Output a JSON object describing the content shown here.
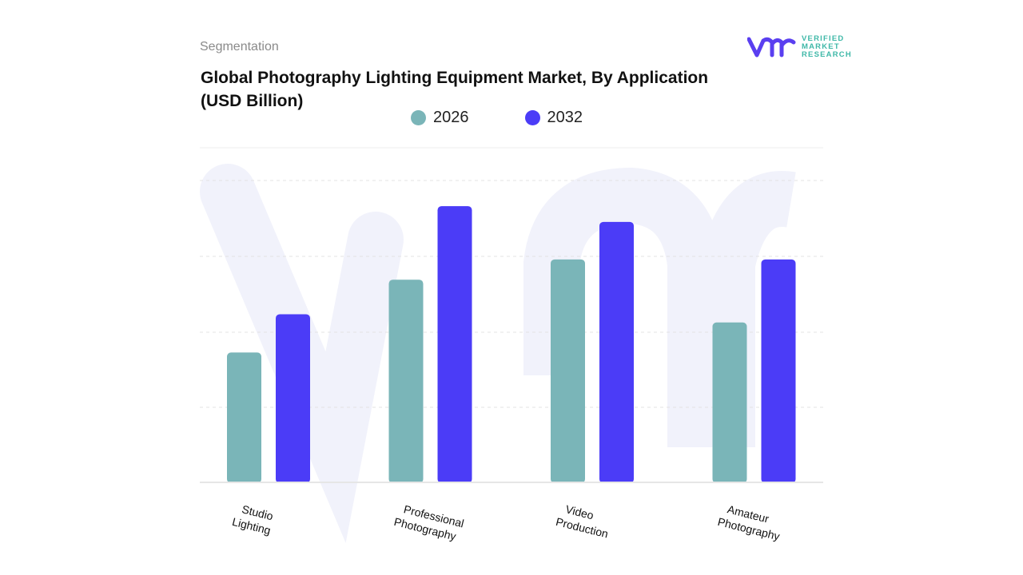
{
  "header": {
    "section": "Segmentation",
    "title": "Global Photography Lighting Equipment Market, By Application (USD Billion)"
  },
  "logo": {
    "brand": "VERIFIED MARKET RESEARCH",
    "lines": [
      "VERIFIED",
      "MARKET",
      "RESEARCH"
    ]
  },
  "colors": {
    "2026": "#7ab5b8",
    "2032": "#4b3cf7",
    "logo_mark": "#5a3ff0",
    "logo_text": "#3fb8a8"
  },
  "chart_data": {
    "type": "bar",
    "title": "Global Photography Lighting Equipment Market, By Application (USD Billion)",
    "categories": [
      [
        "Studio",
        "Lighting"
      ],
      [
        "Professional",
        "Photography"
      ],
      [
        "Video",
        "Production"
      ],
      [
        "Amateur",
        "Photography"
      ]
    ],
    "series": [
      {
        "name": "2026",
        "values": [
          1.73,
          2.7,
          2.97,
          2.13
        ]
      },
      {
        "name": "2032",
        "values": [
          2.24,
          3.68,
          3.47,
          2.97
        ]
      }
    ],
    "ylim": [
      0,
      4.5
    ],
    "grid": true,
    "legend_position": "top-center",
    "xlabel": "",
    "ylabel": ""
  }
}
